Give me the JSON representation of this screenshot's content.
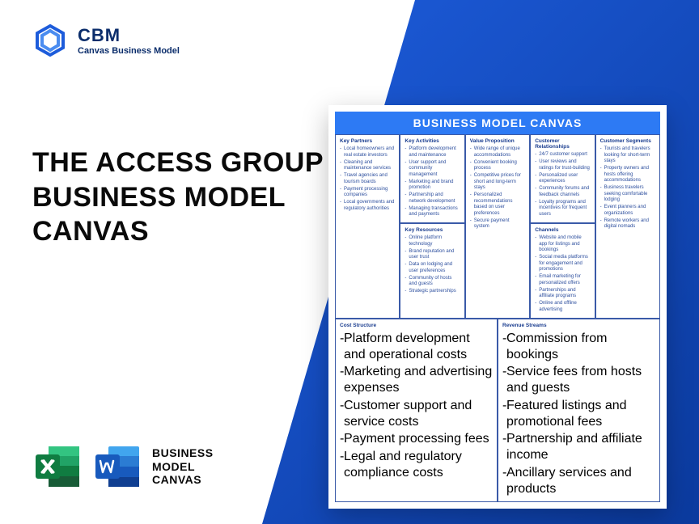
{
  "colors": {
    "brand_blue": "#1d5cdb",
    "brand_dark": "#0b3a9e",
    "text_dark": "#0a0a0a",
    "logo_navy": "#0b2d6b",
    "card_blue": "#2d7af4",
    "cell_border": "#3a5aa8",
    "cell_text": "#2d4f9e",
    "excel_green": "#1e7145",
    "excel_light": "#21a366",
    "word_blue": "#2b579a",
    "word_light": "#41a5ee"
  },
  "logo": {
    "title": "CBM",
    "subtitle": "Canvas Business Model"
  },
  "headline": "THE ACCESS GROUP BUSINESS MODEL CANVAS",
  "files_label": {
    "l1": "BUSINESS",
    "l2": "MODEL",
    "l3": "CANVAS"
  },
  "card": {
    "title": "BUSINESS MODEL CANVAS",
    "key_partners": {
      "h": "Key Partners",
      "items": [
        "Local homeowners and real estate investors",
        "Cleaning and maintenance services",
        "Travel agencies and tourism boards",
        "Payment processing companies",
        "Local governments and regulatory authorities"
      ]
    },
    "key_activities": {
      "h": "Key Activities",
      "items": [
        "Platform development and maintenance",
        "User support and community management",
        "Marketing and brand promotion",
        "Partnership and network development",
        "Managing transactions and payments"
      ]
    },
    "key_resources": {
      "h": "Key Resources",
      "items": [
        "Online platform technology",
        "Brand reputation and user trust",
        "Data on lodging and user preferences",
        "Community of hosts and guests",
        "Strategic partnerships"
      ]
    },
    "value_prop": {
      "h": "Value Proposition",
      "items": [
        "Wide range of unique accommodations",
        "Convenient booking process",
        "Competitive prices for short and long-term stays",
        "Personalized recommendations based on user preferences",
        "Secure payment system"
      ]
    },
    "cust_rel": {
      "h": "Customer Relationships",
      "items": [
        "24/7 customer support",
        "User reviews and ratings for trust-building",
        "Personalized user experiences",
        "Community forums and feedback channels",
        "Loyalty programs and incentives for frequent users"
      ]
    },
    "channels": {
      "h": "Channels",
      "items": [
        "Website and mobile app for listings and bookings",
        "Social media platforms for engagement and promotions",
        "Email marketing for personalized offers",
        "Partnerships and affiliate programs",
        "Online and offline advertising"
      ]
    },
    "cust_seg": {
      "h": "Customer Segments",
      "items": [
        "Tourists and travelers looking for short-term stays",
        "Property owners and hosts offering accommodations",
        "Business travelers seeking comfortable lodging",
        "Event planners and organizations",
        "Remote workers and digital nomads"
      ]
    },
    "cost": {
      "h": "Cost Structure",
      "items": [
        "Platform development and operational costs",
        "Marketing and advertising expenses",
        "Customer support and service costs",
        "Payment processing fees",
        "Legal and regulatory compliance costs"
      ]
    },
    "revenue": {
      "h": "Revenue Streams",
      "items": [
        "Commission from bookings",
        "Service fees from hosts and guests",
        "Featured listings and promotional fees",
        "Partnership and affiliate income",
        "Ancillary services and products"
      ]
    }
  }
}
